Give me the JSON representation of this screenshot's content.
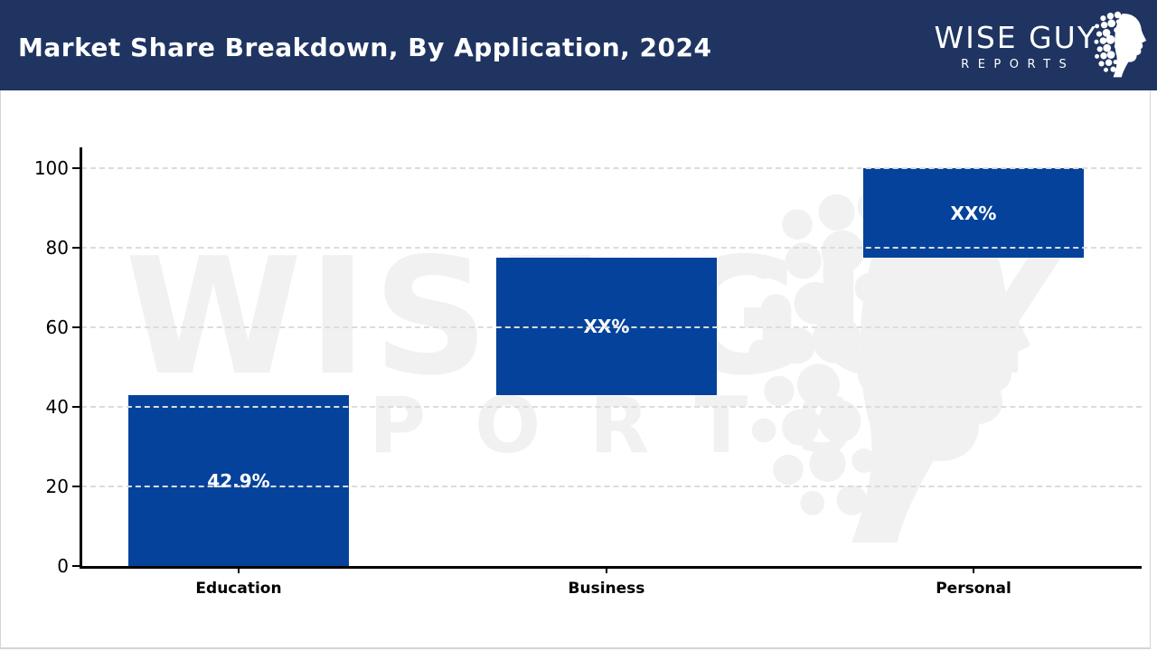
{
  "header": {
    "title": "Market Share Breakdown, By Application, 2024",
    "logo": {
      "line1": "WISE GUY",
      "line2": "REPORTS"
    }
  },
  "watermark": {
    "line1": "WISE GUY",
    "line2": "REPORTS"
  },
  "chart_data": {
    "type": "bar",
    "subtype": "floating-waterfall",
    "title": "Market Share Breakdown, By Application, 2024",
    "categories": [
      "Education",
      "Business",
      "Personal"
    ],
    "segments": [
      {
        "category": "Education",
        "start": 0,
        "end": 42.9,
        "label": "42.9%"
      },
      {
        "category": "Business",
        "start": 42.9,
        "end": 77.5,
        "label": "XX%"
      },
      {
        "category": "Personal",
        "start": 77.5,
        "end": 100,
        "label": "XX%"
      }
    ],
    "xlabel": "",
    "ylabel": "",
    "yticks": [
      0,
      20,
      40,
      60,
      80,
      100
    ],
    "ylim": [
      0,
      105
    ],
    "grid": "horizontal-dashed",
    "legend": "none",
    "bar_color": "#05429b",
    "label_color": "#ffffff"
  },
  "colors": {
    "header_bg": "#1f3461",
    "bar": "#05429b",
    "grid": "#dcdcdc",
    "axis": "#000000",
    "watermark": "#f1f1f1",
    "border": "#d5d5d5"
  }
}
